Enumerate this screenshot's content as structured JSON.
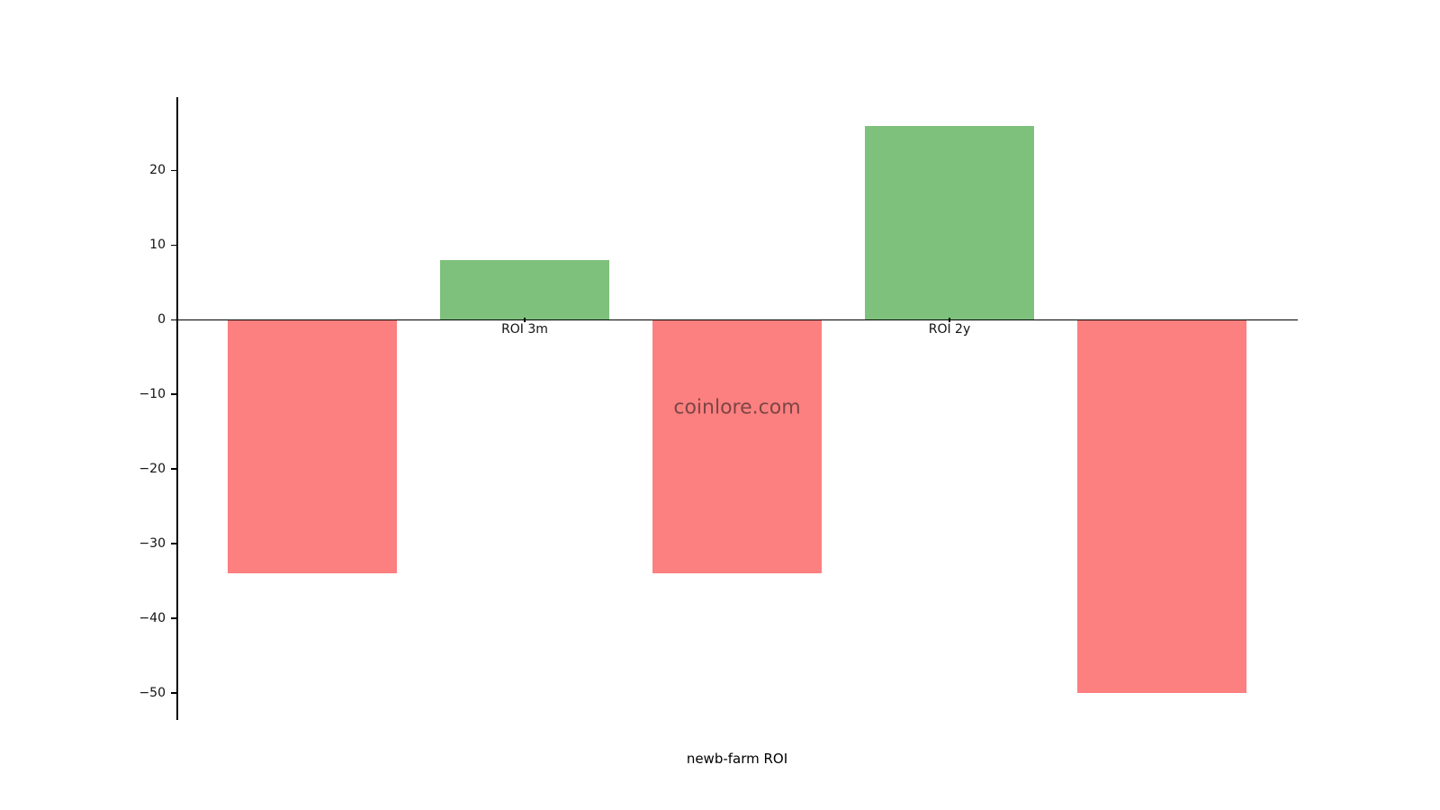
{
  "chart_data": {
    "type": "bar",
    "title": "",
    "xlabel": "newb-farm ROI",
    "ylabel": "",
    "categories": [
      "",
      "ROI 3m",
      "",
      "ROI 2y",
      ""
    ],
    "values": [
      -34,
      8,
      -34,
      26,
      -50
    ],
    "positive_color": "#7dc17d",
    "negative_color": "#fc8080",
    "axis_color": "#000000",
    "tick_text_color": "#111111",
    "y_ticks": [
      20,
      10,
      0,
      -10,
      -20,
      -30,
      -40,
      -50
    ],
    "ylim": [
      -53.6,
      29.8
    ],
    "grid": false,
    "legend": "none",
    "watermark": "coinlore.com"
  }
}
